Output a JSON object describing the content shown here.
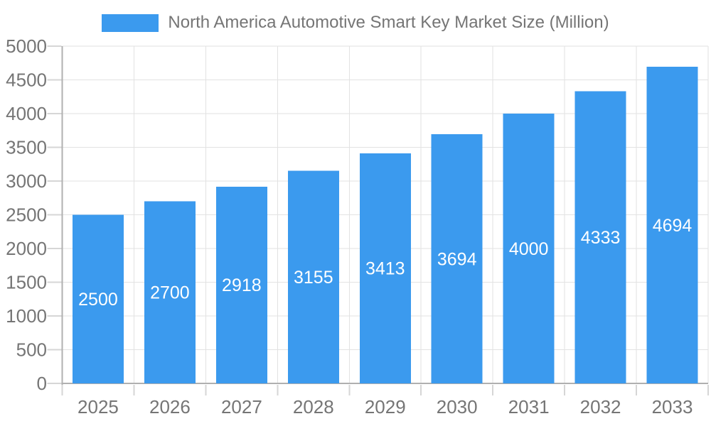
{
  "chart_data": {
    "type": "bar",
    "title": "North America Automotive Smart Key Market Size (Million)",
    "xlabel": "",
    "ylabel": "",
    "categories": [
      "2025",
      "2026",
      "2027",
      "2028",
      "2029",
      "2030",
      "2031",
      "2032",
      "2033"
    ],
    "values": [
      2500,
      2700,
      2918,
      3155,
      3413,
      3694,
      4000,
      4333,
      4694
    ],
    "bar_value_labels": [
      "2500",
      "2700",
      "2918",
      "3155",
      "3413",
      "3694",
      "4000",
      "4333",
      "4694"
    ],
    "y_ticks": [
      0,
      500,
      1000,
      1500,
      2000,
      2500,
      3000,
      3500,
      4000,
      4500,
      5000
    ],
    "ylim": [
      0,
      5000
    ],
    "grid": true,
    "legend_position": "top-center",
    "legend_entries": [
      "North America Automotive Smart Key Market Size (Million)"
    ],
    "colors": {
      "bar": "#3B9AEE",
      "value_label_text": "#FFFFFF",
      "axis_text": "#757575",
      "legend_text": "#757575",
      "grid_line": "#E2E2E2",
      "axis_line": "#B0B0B0",
      "tick_line": "#D6D6D6",
      "background": "#FFFFFF"
    }
  }
}
